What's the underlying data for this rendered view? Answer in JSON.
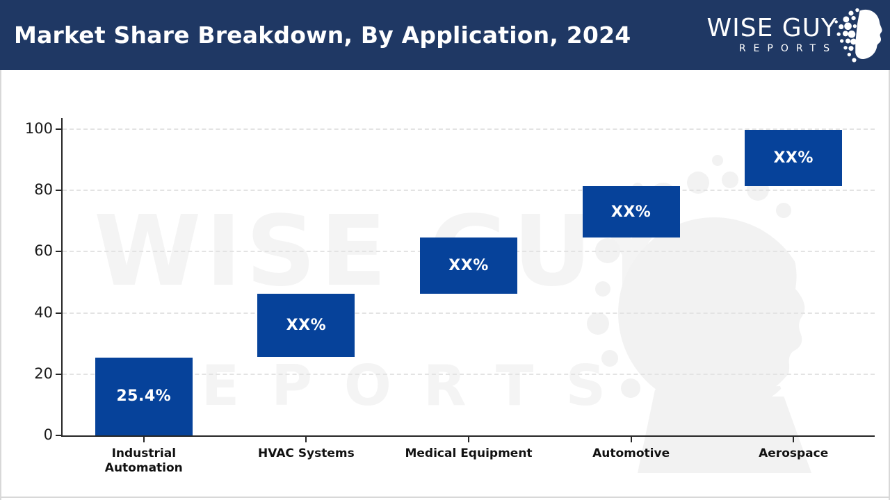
{
  "header": {
    "title": "Market Share Breakdown, By Application, 2024",
    "logo": {
      "wordmark": "WISE GUY",
      "subtext": "REPORTS"
    }
  },
  "watermark": {
    "wordmark": "WISE GUY",
    "subtext": "REPORTS"
  },
  "colors": {
    "header_bg": "#1f3864",
    "bar": "#06429a",
    "axis": "#262626",
    "grid": "#e3e3e3",
    "bar_label": "#ffffff",
    "watermark": "#f4f4f4"
  },
  "chart_data": {
    "type": "bar",
    "subtype": "floating-waterfall",
    "title": "Market Share Breakdown, By Application, 2024",
    "xlabel": "",
    "ylabel": "",
    "categories": [
      "Industrial Automation",
      "HVAC Systems",
      "Medical Equipment",
      "Automotive",
      "Aerospace"
    ],
    "category_lines": [
      [
        "Industrial",
        "Automation"
      ],
      [
        "HVAC Systems"
      ],
      [
        "Medical Equipment"
      ],
      [
        "Automotive"
      ],
      [
        "Aerospace"
      ]
    ],
    "bars": [
      {
        "category": "Industrial Automation",
        "from": 0,
        "to": 25.4,
        "label": "25.4%"
      },
      {
        "category": "HVAC Systems",
        "from": 25.6,
        "to": 46.3,
        "label": "XX%"
      },
      {
        "category": "Medical Equipment",
        "from": 46.3,
        "to": 64.6,
        "label": "XX%"
      },
      {
        "category": "Automotive",
        "from": 64.6,
        "to": 81.4,
        "label": "XX%"
      },
      {
        "category": "Aerospace",
        "from": 81.4,
        "to": 99.8,
        "label": "XX%"
      }
    ],
    "yticks": [
      0,
      20,
      40,
      60,
      80,
      100
    ],
    "ylim": [
      0,
      103.6
    ],
    "grid": "horizontal-dashed",
    "legend": null
  }
}
